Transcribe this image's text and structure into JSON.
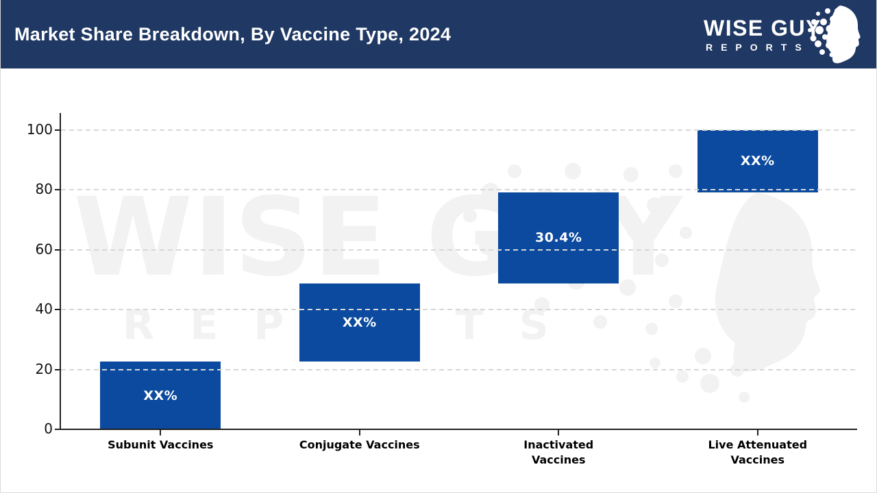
{
  "header": {
    "title": "Market Share Breakdown, By Vaccine Type, 2024",
    "logo": {
      "line1": "WISE GUY",
      "line2": "REPORTS"
    }
  },
  "watermark": {
    "line1": "WISE GUY",
    "line2": "REPORTS"
  },
  "chart_data": {
    "type": "bar",
    "subtype": "waterfall",
    "title": "Market Share Breakdown, By Vaccine Type, 2024",
    "categories": [
      "Subunit Vaccines",
      "Conjugate Vaccines",
      "Inactivated Vaccines",
      "Live Attenuated Vaccines"
    ],
    "category_display": [
      "Subunit Vaccines",
      "Conjugate Vaccines",
      "Inactivated\nVaccines",
      "Live Attenuated\nVaccines"
    ],
    "segments": [
      {
        "category": "Subunit Vaccines",
        "start": 0,
        "end": 22.6,
        "label": "XX%"
      },
      {
        "category": "Conjugate Vaccines",
        "start": 22.6,
        "end": 48.7,
        "label": "XX%"
      },
      {
        "category": "Inactivated Vaccines",
        "start": 48.7,
        "end": 79.1,
        "label": "30.4%"
      },
      {
        "category": "Live Attenuated Vaccines",
        "start": 79.1,
        "end": 100,
        "label": "XX%"
      }
    ],
    "yticks": [
      0,
      20,
      40,
      60,
      80,
      100
    ],
    "ylim": [
      0,
      105.6
    ],
    "xlabel": "",
    "ylabel": "",
    "grid": "horizontal-dashed",
    "legend": "none",
    "bar_color": "#0b4a9e",
    "bar_label_color": "#ffffff"
  },
  "colors": {
    "header_bg": "#1f3864",
    "bar": "#0b4a9e",
    "axis": "#1f1f1f",
    "gridline": "#d7d7d7",
    "watermark": "#f2f2f2",
    "title_text": "#ffffff",
    "tick_text": "#111111"
  }
}
